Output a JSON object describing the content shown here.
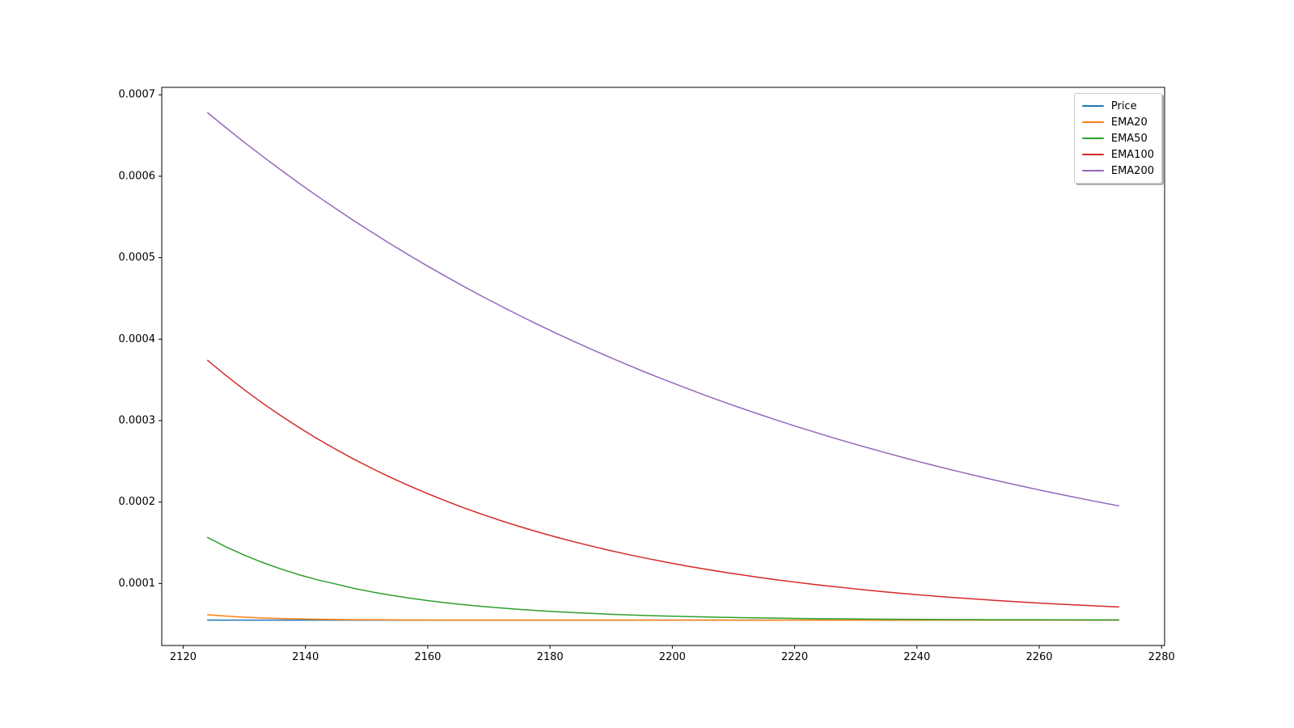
{
  "figure": {
    "background": "#ffffff"
  },
  "chart_data": {
    "type": "line",
    "title": "",
    "xlabel": "",
    "ylabel": "",
    "grid": false,
    "xlim": [
      2116.5,
      2280.5
    ],
    "ylim": [
      2.39e-05,
      0.00070915
    ],
    "x_ticks": {
      "values": [
        2120,
        2140,
        2160,
        2180,
        2200,
        2220,
        2240,
        2260,
        2280
      ],
      "labels": [
        "2120",
        "2140",
        "2160",
        "2180",
        "2200",
        "2220",
        "2240",
        "2260",
        "2280"
      ]
    },
    "y_ticks": {
      "values": [
        0.0001,
        0.0002,
        0.0003,
        0.0004,
        0.0005,
        0.0006,
        0.0007
      ],
      "labels": [
        "0.0001",
        "0.0002",
        "0.0003",
        "0.0004",
        "0.0005",
        "0.0006",
        "0.0007"
      ]
    },
    "legend": {
      "position": "upper-right",
      "entries": [
        "Price",
        "EMA20",
        "EMA50",
        "EMA100",
        "EMA200"
      ]
    },
    "x": [
      2124,
      2127,
      2130,
      2133,
      2136,
      2139,
      2142,
      2145,
      2148,
      2151,
      2154,
      2157,
      2160,
      2163,
      2166,
      2169,
      2172,
      2175,
      2178,
      2181,
      2184,
      2187,
      2190,
      2193,
      2196,
      2199,
      2202,
      2205,
      2208,
      2211,
      2214,
      2217,
      2220,
      2223,
      2226,
      2229,
      2232,
      2235,
      2238,
      2241,
      2244,
      2247,
      2250,
      2253,
      2256,
      2259,
      2262,
      2265,
      2268,
      2271,
      2273
    ],
    "series": [
      {
        "name": "Price",
        "color": "#1f77b4",
        "values": [
          5.5e-05,
          5.5e-05,
          5.5e-05,
          5.5e-05,
          5.5e-05,
          5.5e-05,
          5.5e-05,
          5.5e-05,
          5.5e-05,
          5.5e-05,
          5.5e-05,
          5.5e-05,
          5.5e-05,
          5.5e-05,
          5.5e-05,
          5.5e-05,
          5.5e-05,
          5.5e-05,
          5.5e-05,
          5.5e-05,
          5.5e-05,
          5.5e-05,
          5.5e-05,
          5.5e-05,
          5.5e-05,
          5.5e-05,
          5.5e-05,
          5.5e-05,
          5.5e-05,
          5.5e-05,
          5.5e-05,
          5.5e-05,
          5.5e-05,
          5.5e-05,
          5.5e-05,
          5.5e-05,
          5.5e-05,
          5.5e-05,
          5.5e-05,
          5.5e-05,
          5.5e-05,
          5.5e-05,
          5.5e-05,
          5.5e-05,
          5.5e-05,
          5.5e-05,
          5.5e-05,
          5.5e-05,
          5.5e-05,
          5.5e-05,
          5.5e-05
        ]
      },
      {
        "name": "EMA20",
        "color": "#ff7f0e",
        "values": [
          6.17e-05,
          6e-05,
          5.87e-05,
          5.77e-05,
          5.7e-05,
          5.65e-05,
          5.61e-05,
          5.58e-05,
          5.56e-05,
          5.55e-05,
          5.53e-05,
          5.52e-05,
          5.52e-05,
          5.51e-05,
          5.51e-05,
          5.51e-05,
          5.51e-05,
          5.5e-05,
          5.5e-05,
          5.5e-05,
          5.5e-05,
          5.5e-05,
          5.5e-05,
          5.5e-05,
          5.5e-05,
          5.5e-05,
          5.5e-05,
          5.5e-05,
          5.5e-05,
          5.5e-05,
          5.5e-05,
          5.5e-05,
          5.5e-05,
          5.5e-05,
          5.5e-05,
          5.5e-05,
          5.5e-05,
          5.5e-05,
          5.5e-05,
          5.5e-05,
          5.5e-05,
          5.5e-05,
          5.5e-05,
          5.5e-05,
          5.5e-05,
          5.5e-05,
          5.5e-05,
          5.5e-05,
          5.5e-05,
          5.5e-05,
          5.5e-05
        ]
      },
      {
        "name": "EMA50",
        "color": "#2ca02c",
        "values": [
          0.0001565,
          0.000145,
          0.0001348,
          0.0001258,
          0.0001178,
          0.0001107,
          0.0001044,
          9.93e-05,
          9.39e-05,
          8.95e-05,
          8.56e-05,
          8.21e-05,
          7.9e-05,
          7.63e-05,
          7.39e-05,
          7.18e-05,
          6.99e-05,
          6.82e-05,
          6.67e-05,
          6.54e-05,
          6.42e-05,
          6.32e-05,
          6.22e-05,
          6.14e-05,
          6.07e-05,
          6e-05,
          5.95e-05,
          5.9e-05,
          5.85e-05,
          5.81e-05,
          5.78e-05,
          5.75e-05,
          5.72e-05,
          5.69e-05,
          5.67e-05,
          5.65e-05,
          5.63e-05,
          5.62e-05,
          5.61e-05,
          5.59e-05,
          5.58e-05,
          5.57e-05,
          5.57e-05,
          5.56e-05,
          5.55e-05,
          5.55e-05,
          5.54e-05,
          5.54e-05,
          5.53e-05,
          5.53e-05,
          5.53e-05
        ]
      },
      {
        "name": "EMA100",
        "color": "#d62728",
        "values": [
          0.000374,
          0.0003554,
          0.0003379,
          0.0003214,
          0.0003059,
          0.0002913,
          0.0002775,
          0.0002646,
          0.0002524,
          0.0002409,
          0.00023,
          0.0002199,
          0.0002103,
          0.0002012,
          0.0001927,
          0.0001847,
          0.0001771,
          0.00017,
          0.0001633,
          0.000157,
          0.0001511,
          0.0001455,
          0.0001402,
          0.0001352,
          0.0001306,
          0.0001262,
          0.000122,
          0.0001181,
          0.0001144,
          0.000111,
          0.0001077,
          0.0001046,
          0.0001018,
          9.9e-05,
          9.65e-05,
          9.41e-05,
          9.18e-05,
          8.96e-05,
          8.76e-05,
          8.57e-05,
          8.39e-05,
          8.22e-05,
          8.07e-05,
          7.92e-05,
          7.78e-05,
          7.64e-05,
          7.52e-05,
          7.4e-05,
          7.29e-05,
          7.19e-05,
          7.12e-05
        ]
      },
      {
        "name": "EMA200",
        "color": "#9467bd",
        "values": [
          0.000678,
          0.0006596,
          0.0006417,
          0.0006244,
          0.0006076,
          0.0005912,
          0.0005754,
          0.00056,
          0.0005451,
          0.0005306,
          0.0005165,
          0.0005029,
          0.0004896,
          0.0004768,
          0.0004643,
          0.0004522,
          0.0004405,
          0.0004291,
          0.000418,
          0.0004073,
          0.0003969,
          0.0003868,
          0.000377,
          0.0003675,
          0.0003582,
          0.0003493,
          0.0003406,
          0.0003321,
          0.0003239,
          0.000316,
          0.0003083,
          0.0003008,
          0.0002935,
          0.0002865,
          0.0002796,
          0.000273,
          0.0002666,
          0.0002603,
          0.0002542,
          0.0002483,
          0.0002426,
          0.0002371,
          0.0002317,
          0.0002265,
          0.0002214,
          0.0002165,
          0.0002117,
          0.0002071,
          0.0002026,
          0.0001982,
          0.0001954
        ]
      }
    ]
  }
}
